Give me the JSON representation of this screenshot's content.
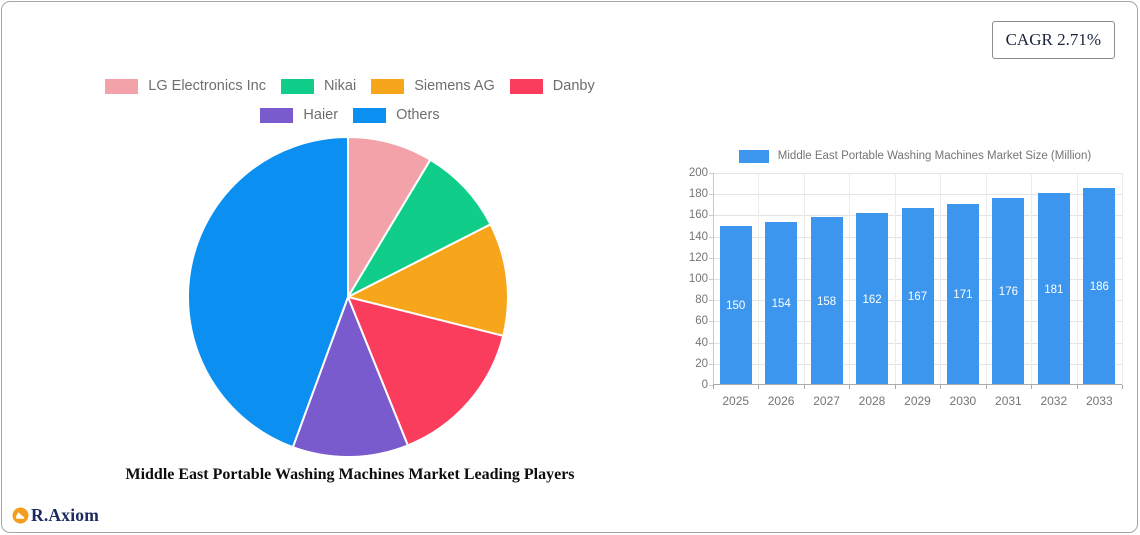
{
  "cagr_badge": {
    "label": "CAGR 2.71%"
  },
  "logo": {
    "text": "R.Axiom",
    "icon_color": "#f39c1f",
    "text_color": "#1b2a5e"
  },
  "chart_data": [
    {
      "type": "pie",
      "title": "Middle East Portable Washing Machines Market Leading Players",
      "labels": [
        "LG Electronics Inc",
        "Nikai",
        "Siemens AG",
        "Danby",
        "Haier",
        "Others"
      ],
      "values": [
        8.6,
        8.9,
        11.4,
        15.0,
        11.7,
        44.4
      ],
      "colors": [
        "#f2a2a8",
        "#10ce89",
        "#f7a51b",
        "#fb3d5d",
        "#7a5bce",
        "#0b90f1"
      ],
      "legend_position": "top",
      "legend_row_split": 4,
      "start_angle_deg": 0,
      "direction": "clockwise"
    },
    {
      "type": "bar",
      "legend": [
        "Middle East Portable Washing Machines Market Size (Million)"
      ],
      "categories": [
        "2025",
        "2026",
        "2027",
        "2028",
        "2029",
        "2030",
        "2031",
        "2032",
        "2033"
      ],
      "values": [
        150,
        154,
        158,
        162,
        167,
        171,
        176,
        181,
        186
      ],
      "bar_color": "#3d96ed",
      "value_label_color": "#ffffff",
      "ylim": [
        0,
        200
      ],
      "ytick_step": 20,
      "grid": true,
      "legend_position": "top"
    }
  ]
}
